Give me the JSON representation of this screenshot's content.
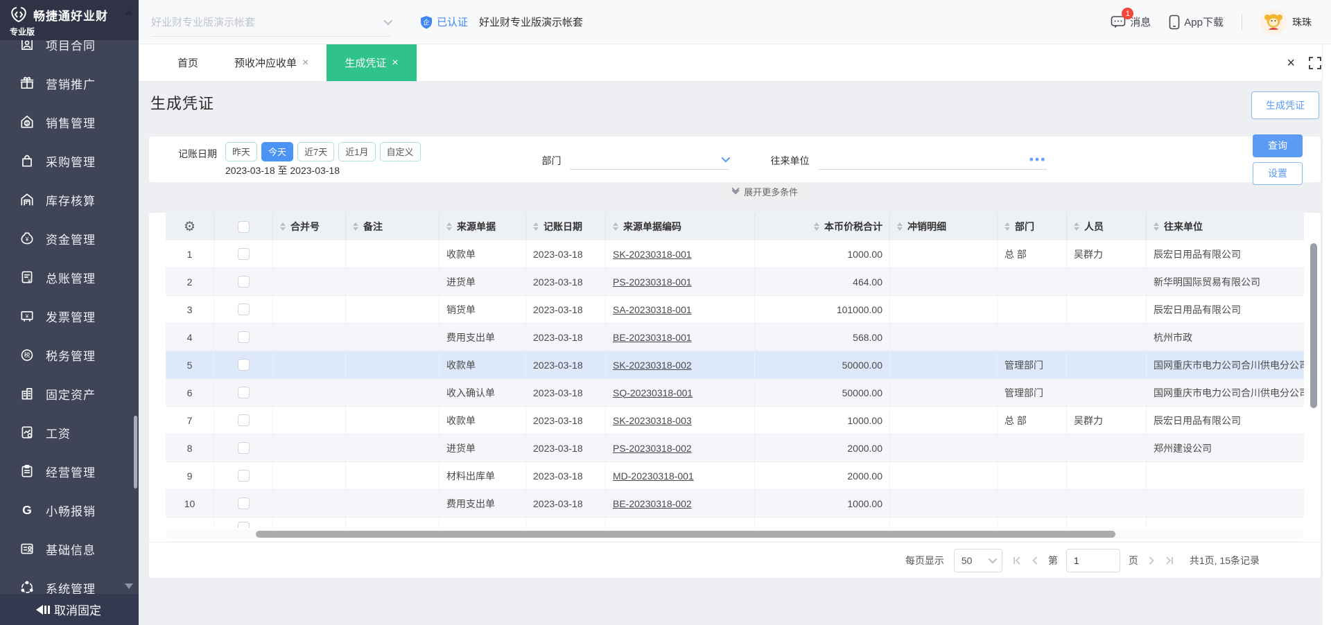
{
  "icons": {
    "close": "×"
  },
  "sidebar": {
    "logo_title": "畅捷通好业财",
    "logo_subtitle": "专业版",
    "unpin_label": "取消固定",
    "items": [
      {
        "key": "project-contract",
        "icon": "contract-icon",
        "label": "项目合同"
      },
      {
        "key": "marketing",
        "icon": "gift-icon",
        "label": "营销推广"
      },
      {
        "key": "sales",
        "icon": "sales-house-icon",
        "label": "销售管理"
      },
      {
        "key": "purchase",
        "icon": "shopping-bag-icon",
        "label": "采购管理"
      },
      {
        "key": "inventory",
        "icon": "warehouse-icon",
        "label": "库存核算"
      },
      {
        "key": "funds",
        "icon": "money-bag-icon",
        "label": "资金管理"
      },
      {
        "key": "general-ledger",
        "icon": "ledger-icon",
        "label": "总账管理"
      },
      {
        "key": "invoice",
        "icon": "invoice-icon",
        "label": "发票管理"
      },
      {
        "key": "tax",
        "icon": "tax-icon",
        "label": "税务管理"
      },
      {
        "key": "fixed-assets",
        "icon": "building-icon",
        "label": "固定资产"
      },
      {
        "key": "salary",
        "icon": "payroll-icon",
        "label": "工资"
      },
      {
        "key": "operations",
        "icon": "clipboard-icon",
        "label": "经营管理"
      },
      {
        "key": "expense",
        "icon": "g-logo-icon",
        "label": "小畅报销"
      },
      {
        "key": "basic-info",
        "icon": "id-card-icon",
        "label": "基础信息"
      },
      {
        "key": "system",
        "icon": "system-icon",
        "label": "系统管理"
      }
    ]
  },
  "topbar": {
    "account_selector": "好业财专业版演示帐套",
    "verified_badge": "已认证",
    "verified_icon_char": "企",
    "account_name": "好业财专业版演示帐套",
    "messages_label": "消息",
    "messages_badge": "1",
    "app_download_label": "App下载",
    "user_name": "珠珠"
  },
  "tabs": [
    {
      "label": "首页",
      "closable": false,
      "active": false
    },
    {
      "label": "预收冲应收单",
      "closable": true,
      "active": false
    },
    {
      "label": "生成凭证",
      "closable": true,
      "active": true
    }
  ],
  "page": {
    "title": "生成凭证",
    "action_button": "生成凭证"
  },
  "filters": {
    "date_label": "记账日期",
    "quick_options": [
      "昨天",
      "今天",
      "近7天",
      "近1月",
      "自定义"
    ],
    "active_quick_option": "今天",
    "date_range": "2023-03-18 至 2023-03-18",
    "department_label": "部门",
    "partner_label": "往来单位",
    "search_button": "查询",
    "settings_button": "设置",
    "expand_more": "展开更多条件"
  },
  "table": {
    "columns": [
      "合并号",
      "备注",
      "来源单据",
      "记账日期",
      "来源单据编码",
      "本币价税合计",
      "冲销明细",
      "部门",
      "人员",
      "往来单位"
    ],
    "rows": [
      {
        "index": "1",
        "merge_no": "",
        "remark": "",
        "source_type": "收款单",
        "date": "2023-03-18",
        "code": "SK-20230318-001",
        "amount": "1000.00",
        "writeoff": "",
        "department": "总 部",
        "person": "吴群力",
        "partner": "辰宏日用品有限公司",
        "highlighted": false
      },
      {
        "index": "2",
        "merge_no": "",
        "remark": "",
        "source_type": "进货单",
        "date": "2023-03-18",
        "code": "PS-20230318-001",
        "amount": "464.00",
        "writeoff": "",
        "department": "",
        "person": "",
        "partner": "新华明国际贸易有限公司",
        "highlighted": false
      },
      {
        "index": "3",
        "merge_no": "",
        "remark": "",
        "source_type": "销货单",
        "date": "2023-03-18",
        "code": "SA-20230318-001",
        "amount": "101000.00",
        "writeoff": "",
        "department": "",
        "person": "",
        "partner": "辰宏日用品有限公司",
        "highlighted": false
      },
      {
        "index": "4",
        "merge_no": "",
        "remark": "",
        "source_type": "费用支出单",
        "date": "2023-03-18",
        "code": "BE-20230318-001",
        "amount": "568.00",
        "writeoff": "",
        "department": "",
        "person": "",
        "partner": "杭州市政",
        "highlighted": false
      },
      {
        "index": "5",
        "merge_no": "",
        "remark": "",
        "source_type": "收款单",
        "date": "2023-03-18",
        "code": "SK-20230318-002",
        "amount": "50000.00",
        "writeoff": "",
        "department": "管理部门",
        "person": "",
        "partner": "国网重庆市电力公司合川供电分公司",
        "highlighted": true
      },
      {
        "index": "6",
        "merge_no": "",
        "remark": "",
        "source_type": "收入确认单",
        "date": "2023-03-18",
        "code": "SQ-20230318-001",
        "amount": "50000.00",
        "writeoff": "",
        "department": "管理部门",
        "person": "",
        "partner": "国网重庆市电力公司合川供电分公司",
        "highlighted": false
      },
      {
        "index": "7",
        "merge_no": "",
        "remark": "",
        "source_type": "收款单",
        "date": "2023-03-18",
        "code": "SK-20230318-003",
        "amount": "1000.00",
        "writeoff": "",
        "department": "总 部",
        "person": "吴群力",
        "partner": "辰宏日用品有限公司",
        "highlighted": false
      },
      {
        "index": "8",
        "merge_no": "",
        "remark": "",
        "source_type": "进货单",
        "date": "2023-03-18",
        "code": "PS-20230318-002",
        "amount": "2000.00",
        "writeoff": "",
        "department": "",
        "person": "",
        "partner": "郑州建设公司",
        "highlighted": false
      },
      {
        "index": "9",
        "merge_no": "",
        "remark": "",
        "source_type": "材料出库单",
        "date": "2023-03-18",
        "code": "MD-20230318-001",
        "amount": "2000.00",
        "writeoff": "",
        "department": "",
        "person": "",
        "partner": "",
        "highlighted": false
      },
      {
        "index": "10",
        "merge_no": "",
        "remark": "",
        "source_type": "费用支出单",
        "date": "2023-03-18",
        "code": "BE-20230318-002",
        "amount": "1000.00",
        "writeoff": "",
        "department": "",
        "person": "",
        "partner": "",
        "highlighted": false
      }
    ]
  },
  "pagination": {
    "per_page_label": "每页显示",
    "per_page_value": "50",
    "page_prefix": "第",
    "page_value": "1",
    "page_suffix": "页",
    "summary": "共1页, 15条记录"
  }
}
